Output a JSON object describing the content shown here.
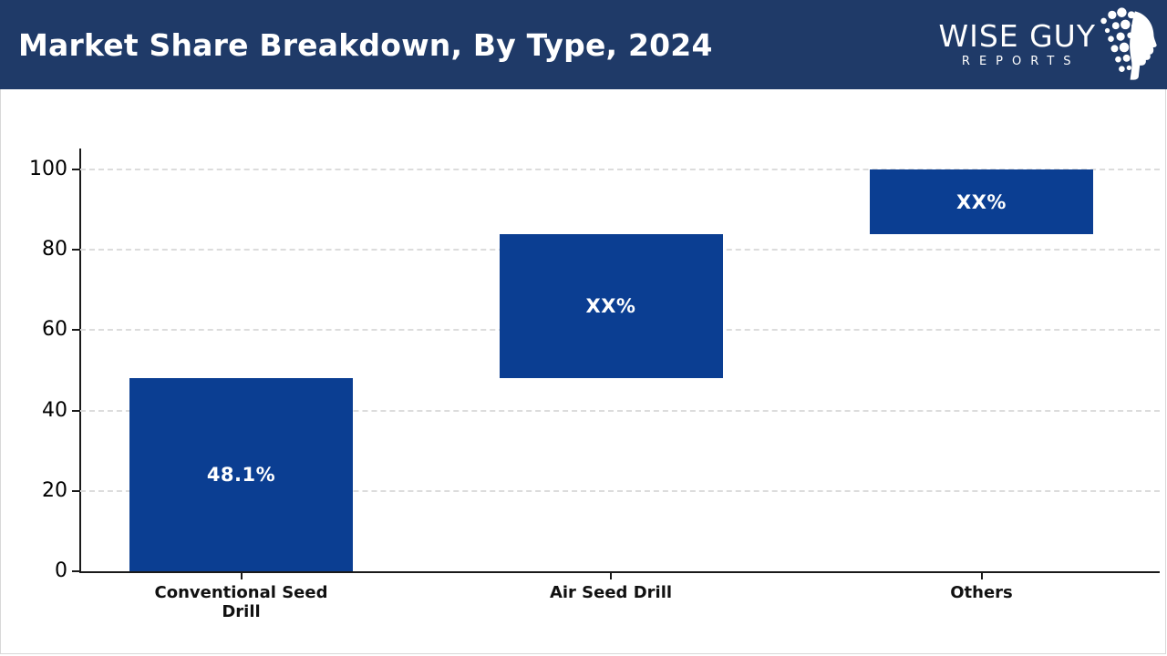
{
  "header": {
    "title": "Market Share Breakdown, By Type, 2024",
    "bg_color": "#1f3a68"
  },
  "logo": {
    "line1": "WISE GUY",
    "line2": "REPORTS"
  },
  "watermark": {
    "line1": "WISE GUY",
    "line2": "REPORTS"
  },
  "chart_data": {
    "type": "bar",
    "variant": "stacked-waterfall",
    "title": "Market Share Breakdown, By Type, 2024",
    "categories": [
      "Conventional Seed Drill",
      "Air Seed Drill",
      "Others"
    ],
    "segments": [
      {
        "category": "Conventional Seed Drill",
        "from": 0,
        "to": 48.1,
        "label": "48.1%"
      },
      {
        "category": "Air Seed Drill",
        "from": 48.1,
        "to": 83.9,
        "label": "XX%"
      },
      {
        "category": "Others",
        "from": 83.9,
        "to": 100,
        "label": "XX%"
      }
    ],
    "yticks": [
      0,
      20,
      40,
      60,
      80,
      100
    ],
    "ylim": [
      0,
      105
    ],
    "xlabel": "",
    "ylabel": "",
    "grid": "horizontal-dashed",
    "legend": "none",
    "bar_color": "#0b3e92",
    "bar_label_color": "#ffffff"
  }
}
